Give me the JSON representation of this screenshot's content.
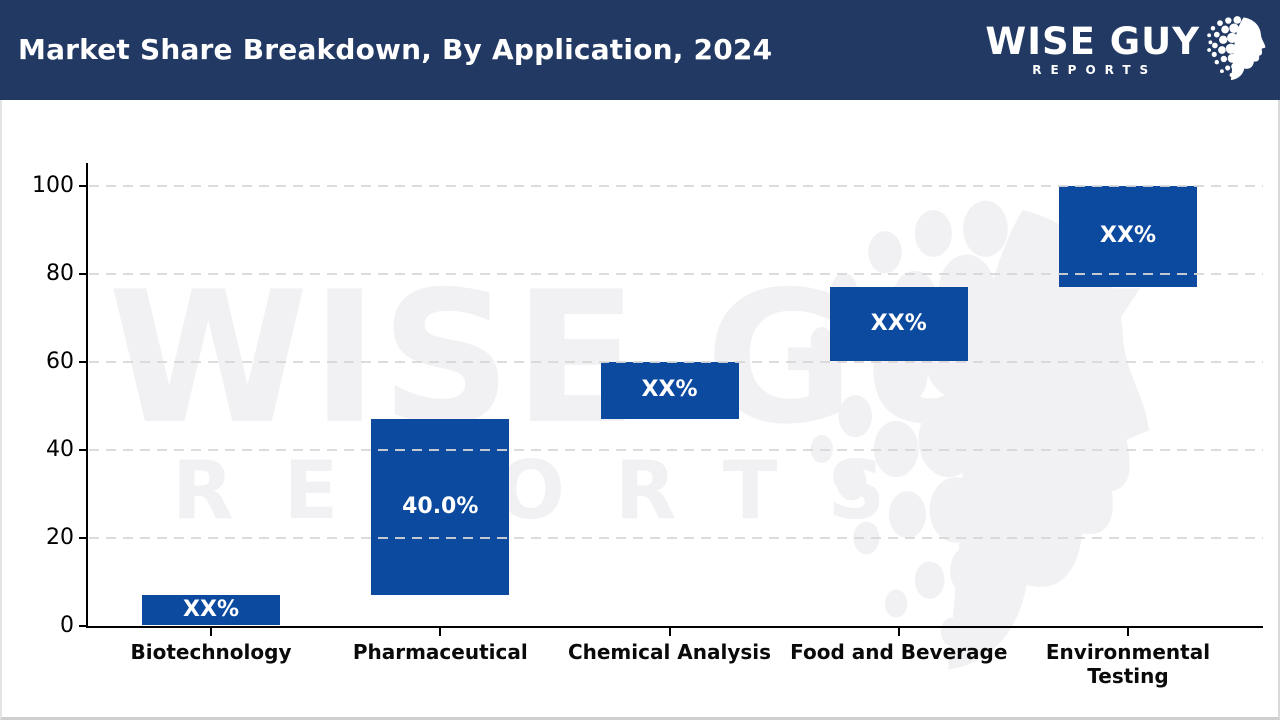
{
  "header": {
    "title": "Market Share Breakdown, By Application, 2024",
    "logo": {
      "name": "WISE GUY",
      "sub": "REPORTS"
    }
  },
  "watermark": {
    "name": "WISE GUY",
    "sub": "REPORTS"
  },
  "chart_data": {
    "type": "bar",
    "subtype": "waterfall",
    "title": "Market Share Breakdown, By Application, 2024",
    "categories": [
      "Biotechnology",
      "Pharmaceutical",
      "Chemical Analysis",
      "Food and Beverage",
      "Environmental Testing"
    ],
    "bars": [
      {
        "category": "Biotechnology",
        "start": 0,
        "end": 7,
        "label": "XX%"
      },
      {
        "category": "Pharmaceutical",
        "start": 7,
        "end": 47,
        "label": "40.0%",
        "value": 40.0
      },
      {
        "category": "Chemical Analysis",
        "start": 47,
        "end": 60,
        "label": "XX%"
      },
      {
        "category": "Food and Beverage",
        "start": 60,
        "end": 77,
        "label": "XX%"
      },
      {
        "category": "Environmental Testing",
        "start": 77,
        "end": 100,
        "label": "XX%"
      }
    ],
    "xlabel": "",
    "ylabel": "",
    "ylim": [
      0,
      100
    ],
    "yticks": [
      0,
      20,
      40,
      60,
      80,
      100
    ],
    "grid": "horizontal-dashed",
    "legend": "none",
    "bar_color": "#0b4a9f",
    "bar_label_color": "#ffffff",
    "axis_color": "#000000",
    "grid_color": "#d8d8d8",
    "header_bg_color": "#223963",
    "watermark_color": "#f1f1f4"
  }
}
